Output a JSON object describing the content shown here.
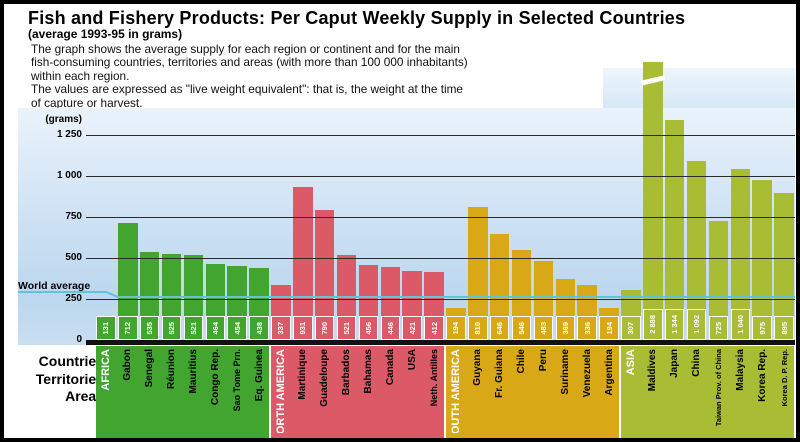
{
  "header": {
    "title": "Fish and Fishery Products: Per Caput Weekly Supply in Selected Countries",
    "subtitle": "(average 1993-95 in grams)",
    "description_lines": [
      "The graph shows the average supply for each region or continent and for the main",
      "fish-consuming countries, territories and areas (with more than 100 000 inhabitants)",
      "within each region.",
      "The values are expressed as \"live weight equivalent\": that is, the weight at the time",
      "of capture or harvest."
    ]
  },
  "axis": {
    "unit_label": "(grams)",
    "ticks": [
      {
        "value": 1250,
        "label": "1 250"
      },
      {
        "value": 1000,
        "label": "1 000"
      },
      {
        "value": 750,
        "label": "750"
      },
      {
        "value": 500,
        "label": "500"
      },
      {
        "value": 250,
        "label": "250"
      },
      {
        "value": 0,
        "label": "0"
      }
    ]
  },
  "world_average": {
    "label": "World average",
    "value_grams": 265
  },
  "footer_labels": [
    "Countries",
    "Territories",
    "Areas"
  ],
  "colors": {
    "africa": "#41a52f",
    "north_america": "#dc5a68",
    "south_america": "#d9a816",
    "asia": "#a8bd33",
    "world_average": "#5fc4d6",
    "grid": "#2b2b2b",
    "value_text": "#ffffff"
  },
  "chart_data": {
    "type": "bar",
    "title": "Fish and Fishery Products: Per Caput Weekly Supply in Selected Countries (average 1993-95 in grams)",
    "xlabel": "Countries Territories Areas",
    "ylabel": "grams",
    "ylim": [
      0,
      1400
    ],
    "yticks": [
      0,
      250,
      500,
      750,
      1000,
      1250
    ],
    "grid": true,
    "world_average_grams": 265,
    "groups": [
      {
        "region": "AFRICA",
        "color_key": "africa",
        "bars": [
          {
            "label": "AFRICA",
            "value": 131,
            "display": "131",
            "is_region": true
          },
          {
            "label": "Gabon",
            "value": 712,
            "display": "712"
          },
          {
            "label": "Senegal",
            "value": 535,
            "display": "535"
          },
          {
            "label": "Réunion",
            "value": 525,
            "display": "525"
          },
          {
            "label": "Mauritius",
            "value": 521,
            "display": "521"
          },
          {
            "label": "Congo Rep.",
            "value": 464,
            "display": "464"
          },
          {
            "label": "Sao Tome Prn.",
            "value": 454,
            "display": "454"
          },
          {
            "label": "Eq. Guinea",
            "value": 438,
            "display": "438"
          }
        ]
      },
      {
        "region": "NORTH AMERICA",
        "color_key": "north_america",
        "bars": [
          {
            "label": "NORTH AMERICA",
            "value": 337,
            "display": "337",
            "is_region": true
          },
          {
            "label": "Martinique",
            "value": 931,
            "display": "931"
          },
          {
            "label": "Guadeloupe",
            "value": 790,
            "display": "790"
          },
          {
            "label": "Barbados",
            "value": 521,
            "display": "521"
          },
          {
            "label": "Bahamas",
            "value": 456,
            "display": "456"
          },
          {
            "label": "Canada",
            "value": 446,
            "display": "446"
          },
          {
            "label": "USA",
            "value": 421,
            "display": "421"
          },
          {
            "label": "Neth. Antilles",
            "value": 412,
            "display": "412"
          }
        ]
      },
      {
        "region": "SOUTH AMERICA",
        "color_key": "south_america",
        "bars": [
          {
            "label": "SOUTH AMERICA",
            "value": 194,
            "display": "194",
            "is_region": true
          },
          {
            "label": "Guyana",
            "value": 810,
            "display": "810"
          },
          {
            "label": "Fr. Guiana",
            "value": 646,
            "display": "646"
          },
          {
            "label": "Chile",
            "value": 546,
            "display": "546"
          },
          {
            "label": "Peru",
            "value": 483,
            "display": "483"
          },
          {
            "label": "Suriname",
            "value": 369,
            "display": "369"
          },
          {
            "label": "Venezuela",
            "value": 336,
            "display": "336"
          },
          {
            "label": "Argentina",
            "value": 194,
            "display": "194"
          }
        ]
      },
      {
        "region": "ASIA",
        "color_key": "asia",
        "bars": [
          {
            "label": "ASIA",
            "value": 307,
            "display": "307",
            "is_region": true
          },
          {
            "label": "Maldives",
            "value": 2888,
            "display": "2 888",
            "broken": true
          },
          {
            "label": "Japan",
            "value": 1344,
            "display": "1 344"
          },
          {
            "label": "China",
            "value": 1092,
            "display": "1 092"
          },
          {
            "label": "Taiwan Prov. of China",
            "value": 725,
            "display": "725"
          },
          {
            "label": "Malaysia",
            "value": 1040,
            "display": "1 040"
          },
          {
            "label": "Korea Rep.",
            "value": 975,
            "display": "975"
          },
          {
            "label": "Korea D. P. Rep.",
            "value": 895,
            "display": "895"
          }
        ]
      }
    ]
  }
}
